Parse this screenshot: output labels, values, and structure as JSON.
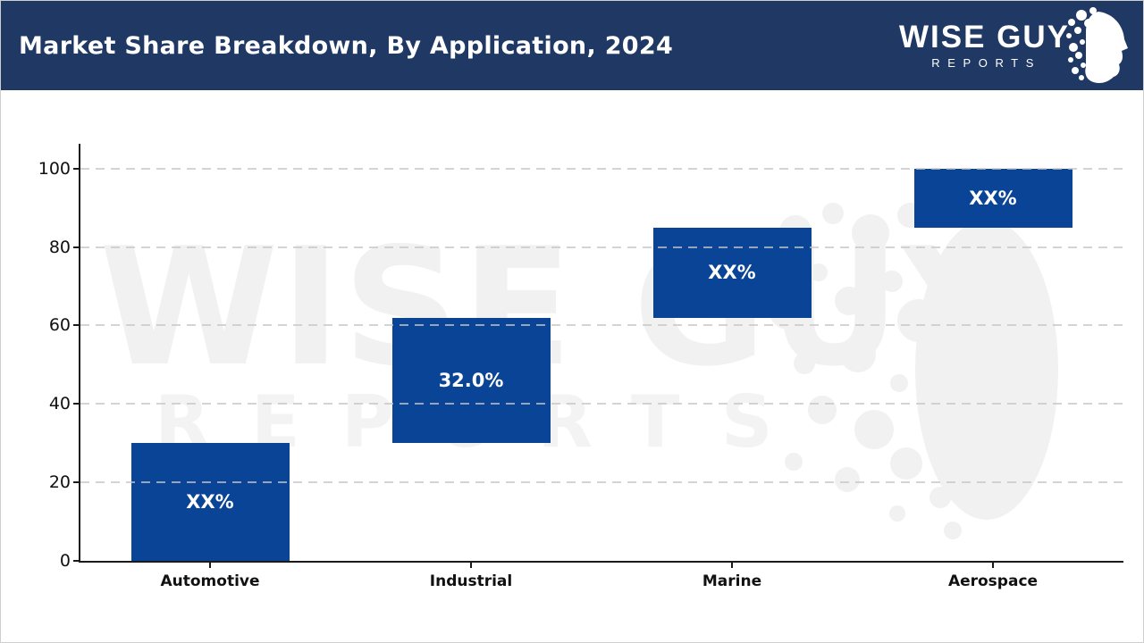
{
  "header": {
    "title": "Market Share Breakdown, By Application, 2024",
    "logo": {
      "line1": "WISE GUY",
      "line2": "REPORTS"
    }
  },
  "watermark": {
    "line1": "WISE GUY",
    "line2": "REPORTS"
  },
  "chart_data": {
    "type": "bar",
    "subtype": "waterfall-floating-bars",
    "title": "Market Share Breakdown, By Application, 2024",
    "categories": [
      "Automotive",
      "Industrial",
      "Marine",
      "Aerospace"
    ],
    "segments": [
      {
        "category": "Automotive",
        "start": 0,
        "end": 30,
        "value": 30,
        "label": "XX%"
      },
      {
        "category": "Industrial",
        "start": 30,
        "end": 62,
        "value": 32,
        "label": "32.0%"
      },
      {
        "category": "Marine",
        "start": 62,
        "end": 85,
        "value": 23,
        "label": "XX%"
      },
      {
        "category": "Aerospace",
        "start": 85,
        "end": 100,
        "value": 15,
        "label": "XX%"
      }
    ],
    "xlabel": "",
    "ylabel": "",
    "ylim": [
      0,
      106
    ],
    "yticks": [
      0,
      20,
      40,
      60,
      80,
      100
    ],
    "grid": "horizontal-dashed-over-bars",
    "legend": "none",
    "bar_color": "#0a4496"
  },
  "colors": {
    "header_bg": "#1f3864",
    "bar": "#0a4496",
    "axis": "#1a1a1a",
    "grid": "#d6d6d6",
    "watermark": "#f1f1f1",
    "page_border": "#cfcfcf"
  }
}
